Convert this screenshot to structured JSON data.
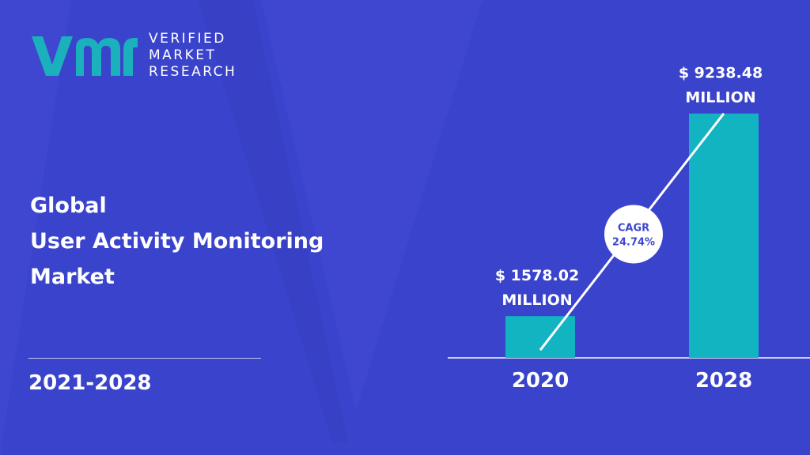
{
  "brand": {
    "line1": "VERIFIED",
    "line2": "MARKET",
    "line3": "RESEARCH",
    "logo_letters": "vmr",
    "accent_color": "#1ab0bc"
  },
  "title": {
    "line1": "Global",
    "line2": "User Activity Monitoring",
    "line3": "Market"
  },
  "period": "2021-2028",
  "chart_data": {
    "type": "bar",
    "categories": [
      "2020",
      "2028"
    ],
    "values": [
      1578.02,
      9238.48
    ],
    "value_labels": [
      [
        "$ 1578.02",
        "MILLION"
      ],
      [
        "$ 9238.48",
        "MILLION"
      ]
    ],
    "annotation": [
      "CAGR",
      "24.74%"
    ],
    "ylim": [
      0,
      11500
    ],
    "bar_color": "#12b4c1",
    "grid": false
  }
}
